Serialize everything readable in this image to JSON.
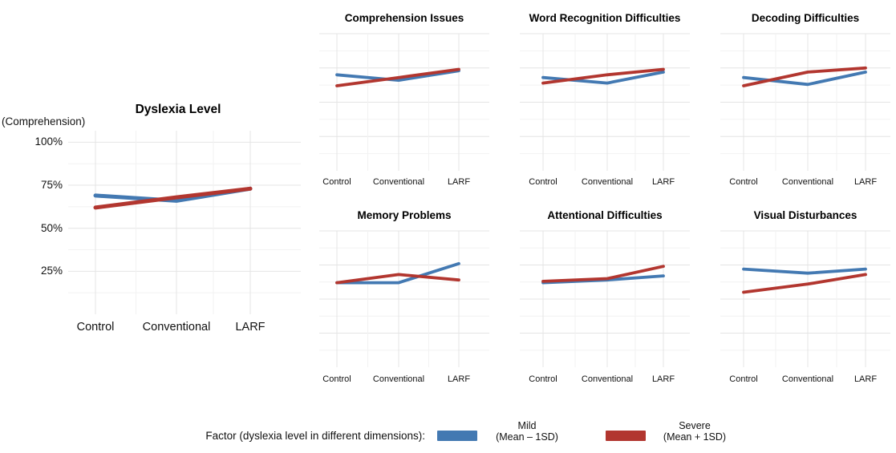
{
  "page": {
    "background": "#ffffff"
  },
  "colors": {
    "mild": "#4379B2",
    "severe": "#B2362F",
    "grid_major": "#e4e4e4",
    "grid_minor": "#f2f2f2",
    "text": "#111111"
  },
  "categories": [
    "Control",
    "Conventional",
    "LARF"
  ],
  "main_chart": {
    "context_label": "(Comprehension)",
    "title": "Dyslexia Level",
    "y_tick_labels": [
      "100%",
      "75%",
      "50%",
      "25%"
    ],
    "y_tick_values": [
      100,
      75,
      50,
      25
    ]
  },
  "chart_data": [
    {
      "type": "line",
      "role": "main",
      "title": "Dyslexia Level",
      "subtitle": "(Comprehension)",
      "categories": [
        "Control",
        "Conventional",
        "LARF"
      ],
      "series": [
        {
          "name": "Mild (Mean – 1SD)",
          "color_key": "mild",
          "values": [
            69,
            66,
            73
          ]
        },
        {
          "name": "Severe (Mean + 1SD)",
          "color_key": "severe",
          "values": [
            62,
            68,
            73
          ]
        }
      ],
      "xlabel": "",
      "ylabel": "(Comprehension)",
      "ylim": [
        0,
        100
      ],
      "y_ticks": [
        "25%",
        "50%",
        "75%",
        "100%"
      ],
      "grid": true,
      "legend_position": "bottom"
    },
    {
      "type": "line",
      "role": "facet",
      "title": "Comprehension Issues",
      "categories": [
        "Control",
        "Conventional",
        "LARF"
      ],
      "series": [
        {
          "name": "Mild (Mean – 1SD)",
          "color_key": "mild",
          "values": [
            70,
            66,
            73
          ]
        },
        {
          "name": "Severe (Mean + 1SD)",
          "color_key": "severe",
          "values": [
            62,
            68,
            74
          ]
        }
      ],
      "ylim": [
        0,
        100
      ],
      "grid": true
    },
    {
      "type": "line",
      "role": "facet",
      "title": "Word Recognition Difficulties",
      "categories": [
        "Control",
        "Conventional",
        "LARF"
      ],
      "series": [
        {
          "name": "Mild (Mean – 1SD)",
          "color_key": "mild",
          "values": [
            68,
            64,
            72
          ]
        },
        {
          "name": "Severe (Mean + 1SD)",
          "color_key": "severe",
          "values": [
            64,
            70,
            74
          ]
        }
      ],
      "ylim": [
        0,
        100
      ],
      "grid": true
    },
    {
      "type": "line",
      "role": "facet",
      "title": "Decoding Difficulties",
      "categories": [
        "Control",
        "Conventional",
        "LARF"
      ],
      "series": [
        {
          "name": "Mild (Mean – 1SD)",
          "color_key": "mild",
          "values": [
            68,
            63,
            72
          ]
        },
        {
          "name": "Severe (Mean + 1SD)",
          "color_key": "severe",
          "values": [
            62,
            72,
            75
          ]
        }
      ],
      "ylim": [
        0,
        100
      ],
      "grid": true
    },
    {
      "type": "line",
      "role": "facet",
      "title": "Memory Problems",
      "categories": [
        "Control",
        "Conventional",
        "LARF"
      ],
      "series": [
        {
          "name": "Mild (Mean – 1SD)",
          "color_key": "mild",
          "values": [
            62,
            62,
            76
          ]
        },
        {
          "name": "Severe (Mean + 1SD)",
          "color_key": "severe",
          "values": [
            62,
            68,
            64
          ]
        }
      ],
      "ylim": [
        0,
        100
      ],
      "grid": true
    },
    {
      "type": "line",
      "role": "facet",
      "title": "Attentional Difficulties",
      "categories": [
        "Control",
        "Conventional",
        "LARF"
      ],
      "series": [
        {
          "name": "Mild (Mean – 1SD)",
          "color_key": "mild",
          "values": [
            62,
            64,
            67
          ]
        },
        {
          "name": "Severe (Mean + 1SD)",
          "color_key": "severe",
          "values": [
            63,
            65,
            74
          ]
        }
      ],
      "ylim": [
        0,
        100
      ],
      "grid": true
    },
    {
      "type": "line",
      "role": "facet",
      "title": "Visual Disturbances",
      "categories": [
        "Control",
        "Conventional",
        "LARF"
      ],
      "series": [
        {
          "name": "Mild (Mean – 1SD)",
          "color_key": "mild",
          "values": [
            72,
            69,
            72
          ]
        },
        {
          "name": "Severe (Mean + 1SD)",
          "color_key": "severe",
          "values": [
            55,
            61,
            68
          ]
        }
      ],
      "ylim": [
        0,
        100
      ],
      "grid": true
    }
  ],
  "legend": {
    "title": "Factor (dyslexia level in different dimensions):",
    "entries": [
      {
        "name": "mild",
        "label_line1": "Mild",
        "label_line2": "(Mean – 1SD)",
        "color": "#4379B2"
      },
      {
        "name": "severe",
        "label_line1": "Severe",
        "label_line2": "(Mean + 1SD)",
        "color": "#B2362F"
      }
    ]
  }
}
